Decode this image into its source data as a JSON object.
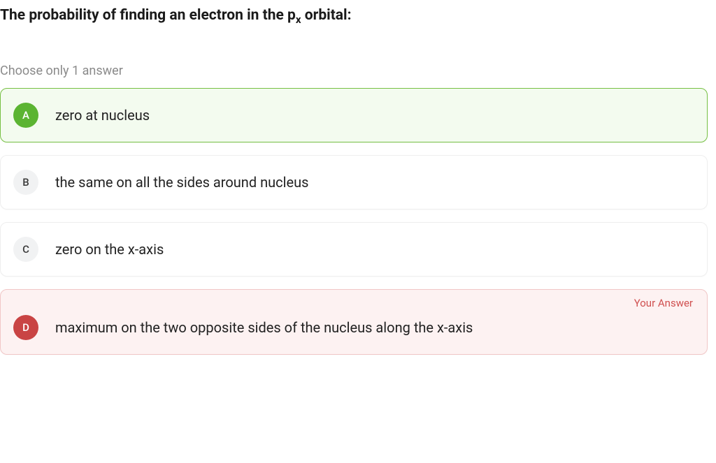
{
  "question": {
    "prefix": "The probability of finding an electron in the p",
    "subscript": "x",
    "suffix": " orbital:"
  },
  "instruction": "Choose only 1 answer",
  "your_answer_label": "Your Answer",
  "options": [
    {
      "letter": "A",
      "text": "zero at nucleus",
      "state": "correct"
    },
    {
      "letter": "B",
      "text": "the same on all the sides around nucleus",
      "state": "normal"
    },
    {
      "letter": "C",
      "text": "zero on the x-axis",
      "state": "normal"
    },
    {
      "letter": "D",
      "text": "maximum on the two opposite sides of the nucleus along the x-axis",
      "state": "wrong"
    }
  ],
  "colors": {
    "correct_bg": "#f3fbef",
    "correct_border": "#76c043",
    "correct_badge": "#5bb432",
    "wrong_bg": "#fdf2f2",
    "wrong_border": "#f1c6c6",
    "wrong_badge": "#c94444",
    "neutral_badge": "#f1f2f3",
    "instruction_text": "#8a8a8a",
    "your_answer_text": "#d05050"
  }
}
